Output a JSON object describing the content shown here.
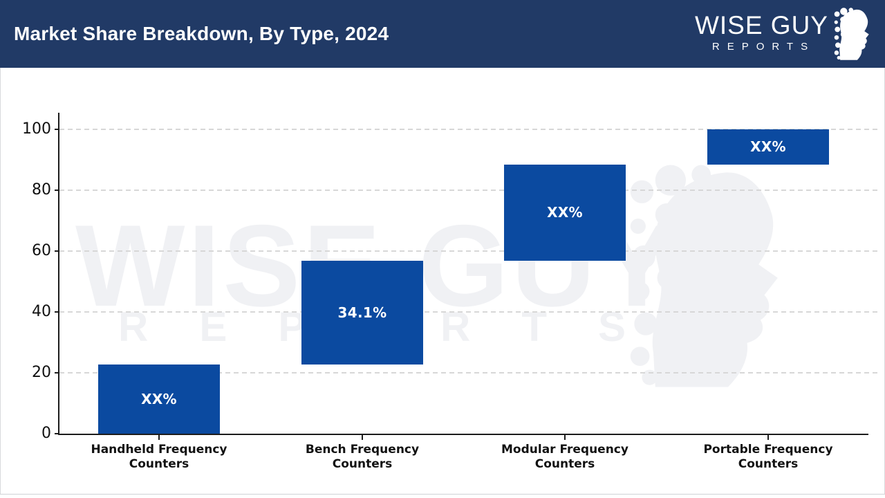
{
  "header": {
    "title": "Market Share Breakdown, By Type, 2024",
    "bg_color": "#213a66",
    "logo": {
      "line1": "WISE GUY",
      "line2": "REPORTS"
    }
  },
  "watermark": {
    "line1": "WISE GUY",
    "line2": "REPORTS"
  },
  "colors": {
    "header_navy": "#213a66",
    "bar_blue": "#0b4aa0",
    "bar_label_white": "#ffffff",
    "gridline_gray": "#d7d7d7",
    "axis_black": "#1c1c1c",
    "watermark_gray": "#f0f1f4"
  },
  "chart_data": {
    "type": "bar",
    "subtype": "floating-segment (waterfall-style market share)",
    "title": "Market Share Breakdown, By Type, 2024",
    "xlabel": "",
    "ylabel": "",
    "ylim": [
      0,
      100
    ],
    "yticks": [
      0,
      20,
      40,
      60,
      80,
      100
    ],
    "grid": "horizontal dashed, light gray",
    "legend": "none",
    "bar_color": "#0b4aa0",
    "categories": [
      "Handheld Frequency Counters",
      "Bench Frequency Counters",
      "Modular Frequency Counters",
      "Portable Frequency Counters"
    ],
    "series": [
      {
        "name": "Market share (cumulative segments)",
        "segments": [
          {
            "category": "Handheld Frequency Counters",
            "start": 0,
            "end": 22.7,
            "height": 22.7,
            "label": "XX%"
          },
          {
            "category": "Bench Frequency Counters",
            "start": 22.7,
            "end": 56.8,
            "height": 34.1,
            "label": "34.1%"
          },
          {
            "category": "Modular Frequency Counters",
            "start": 56.8,
            "end": 88.5,
            "height": 31.7,
            "label": "XX%"
          },
          {
            "category": "Portable Frequency Counters",
            "start": 88.5,
            "end": 100,
            "height": 11.5,
            "label": "XX%"
          }
        ]
      }
    ]
  }
}
